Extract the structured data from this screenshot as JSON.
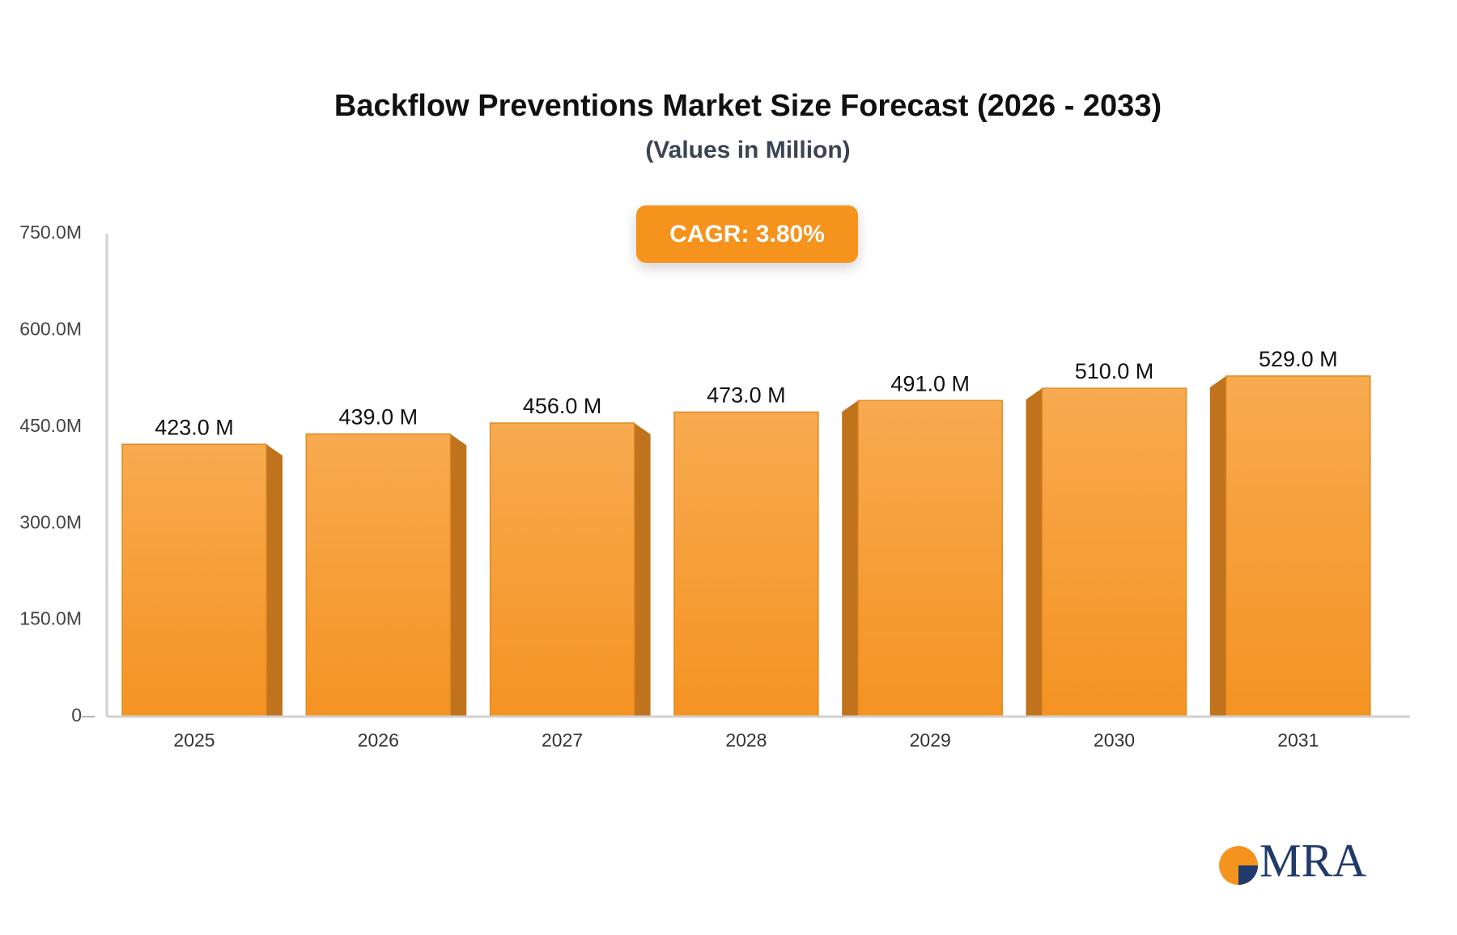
{
  "chart_data": {
    "type": "bar",
    "title": "Backflow Preventions Market Size Forecast (2026 - 2033)",
    "subtitle": "(Values in Million)",
    "annotation": "CAGR: 3.80%",
    "logo": "MRA",
    "categories": [
      "2025",
      "2026",
      "2027",
      "2028",
      "2029",
      "2030",
      "2031"
    ],
    "values": [
      423,
      439,
      456,
      473,
      491,
      510,
      529
    ],
    "value_labels": [
      "423.0 M",
      "439.0 M",
      "456.0 M",
      "473.0 M",
      "491.0 M",
      "510.0 M",
      "529.0 M"
    ],
    "color": "#f59a2e",
    "ylim": [
      0,
      750
    ],
    "yticks": [
      0,
      {
        "value": 150,
        "label": "150.0M"
      },
      {
        "value": 300,
        "label": "300.0M"
      },
      {
        "value": 450,
        "label": "450.0M"
      },
      {
        "value": 600,
        "label": "600.0M"
      },
      {
        "value": 750,
        "label": "750.0M"
      }
    ],
    "grid": false
  }
}
